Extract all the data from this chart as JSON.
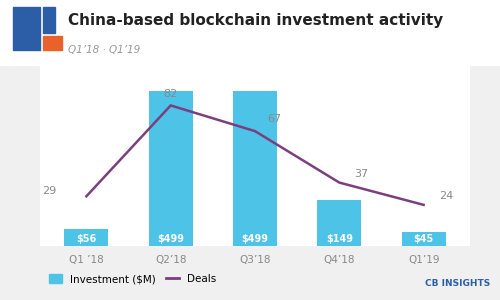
{
  "title": "China-based blockchain investment activity",
  "subtitle": "Q1’18 · Q1’19",
  "categories": [
    "Q1 ’18",
    "Q2’18",
    "Q3’18",
    "Q4’18",
    "Q1’19"
  ],
  "investment": [
    56,
    499,
    499,
    149,
    45
  ],
  "deals": [
    29,
    82,
    67,
    37,
    24
  ],
  "investment_labels": [
    "$56",
    "$499",
    "$499",
    "$149",
    "$45"
  ],
  "bar_color": "#4DC3E8",
  "line_color": "#7B3F7F",
  "bg_color": "#FFFFFF",
  "outer_bg_color": "#F0F0F0",
  "title_fontsize": 11,
  "subtitle_fontsize": 7.5,
  "tick_fontsize": 7.5,
  "bar_label_fontsize": 7,
  "deal_label_fontsize": 8,
  "legend_fontsize": 7.5,
  "legend_label_investment": "Investment ($M)",
  "legend_label_deals": "Deals",
  "ylim_bar": [
    0,
    580
  ],
  "ylim_line": [
    0,
    105
  ],
  "logo_color_main": "#2B5EA7",
  "logo_color_orange": "#E8622A"
}
